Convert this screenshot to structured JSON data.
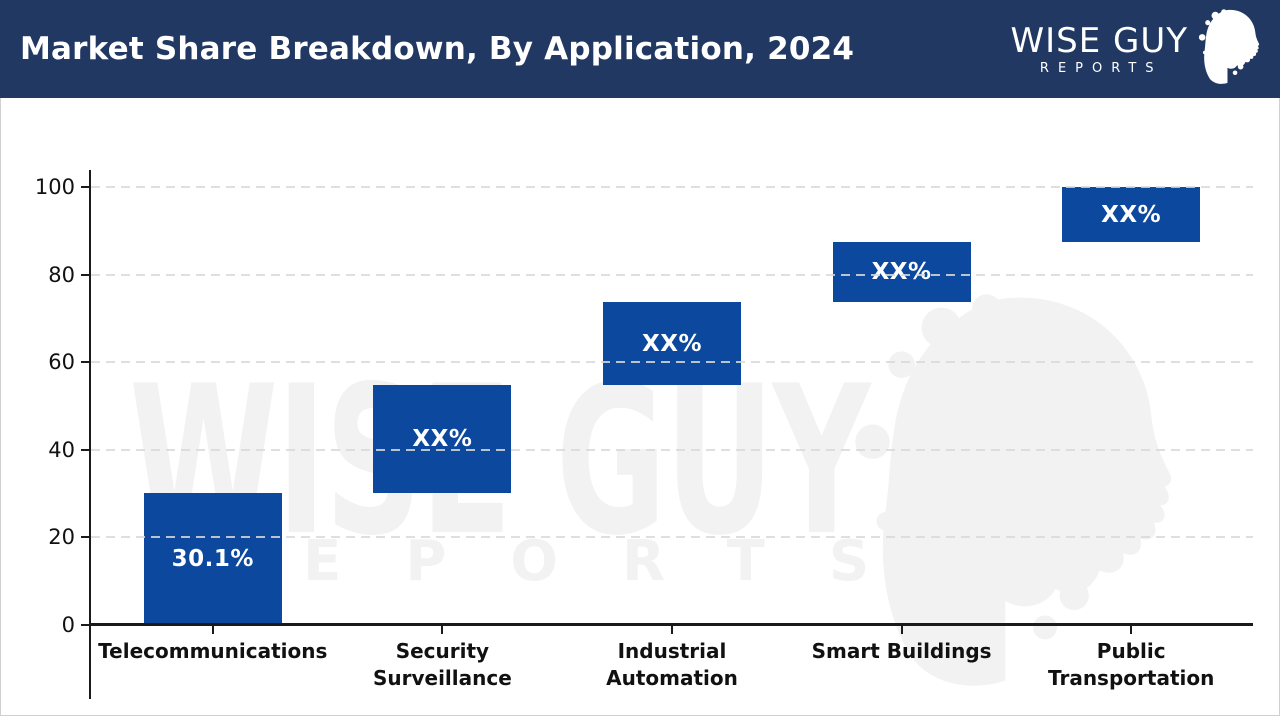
{
  "header": {
    "title": "Market Share Breakdown, By Application, 2024",
    "logo": {
      "line1": "WISE GUY",
      "line2": "REPORTS"
    }
  },
  "watermark": {
    "line1": "WISE GUY",
    "line2": "REPORTS"
  },
  "colors": {
    "header_bg": "#213863",
    "bar": "#0b489e",
    "bar_label": "#ffffff",
    "gridline": "#d9d9d9",
    "axis": "#1a1a1a",
    "watermark": "#f2f2f2"
  },
  "chart_data": {
    "type": "bar",
    "subtype": "waterfall",
    "title": "Market Share Breakdown, By Application, 2024",
    "categories": [
      "Telecommunications",
      "Security\nSurveillance",
      "Industrial\nAutomation",
      "Smart Buildings",
      "Public\nTransportation"
    ],
    "segments": [
      {
        "category": "Telecommunications",
        "start": 0,
        "end": 30.1,
        "label": "30.1%"
      },
      {
        "category": "Security Surveillance",
        "start": 30.1,
        "end": 54.7,
        "label": "XX%"
      },
      {
        "category": "Industrial Automation",
        "start": 54.7,
        "end": 73.8,
        "label": "XX%"
      },
      {
        "category": "Smart Buildings",
        "start": 73.8,
        "end": 87.4,
        "label": "XX%"
      },
      {
        "category": "Public Transportation",
        "start": 87.4,
        "end": 100,
        "label": "XX%"
      }
    ],
    "yticks": [
      0,
      20,
      40,
      60,
      80,
      100
    ],
    "ylim": [
      0,
      100
    ],
    "xlabel": "",
    "ylabel": "",
    "grid": "horizontal-dashed-over-bars",
    "legend": "none",
    "bar_color": "#0b489e",
    "label_color": "#ffffff"
  }
}
